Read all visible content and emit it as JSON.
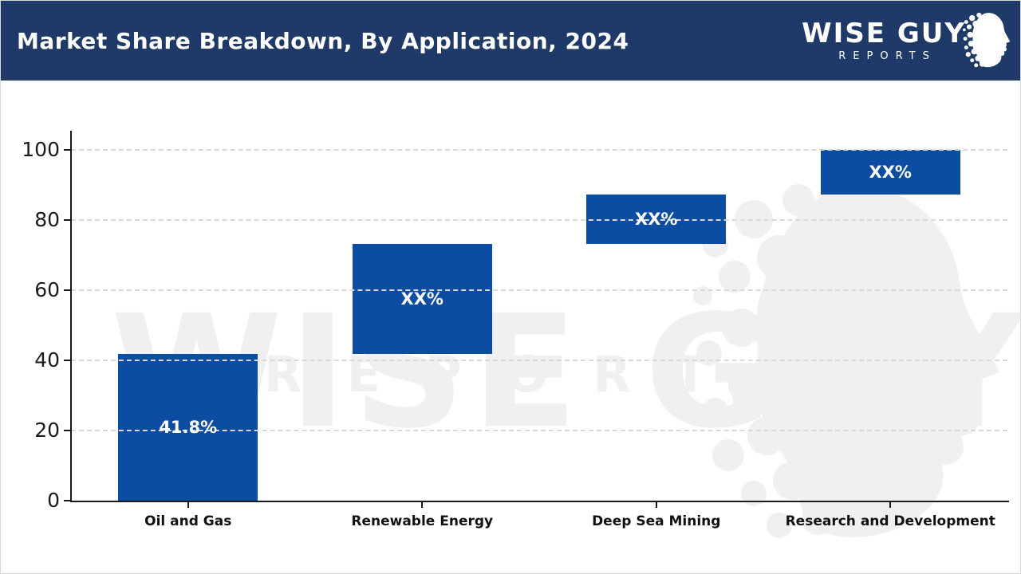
{
  "header": {
    "title": "Market Share Breakdown, By Application, 2024",
    "logo": {
      "line1": "WISE GUY",
      "line2": "REPORTS"
    }
  },
  "watermark": {
    "line1": "WISE GUY",
    "line2": "REPORTS"
  },
  "colors": {
    "header_bg": "#1f3a68",
    "bar": "#0c4da2",
    "grid": "#d9d9d9",
    "axis": "#1a1a1a",
    "bar_label_text": "#ffffff",
    "watermark": "#f0f0f3"
  },
  "chart_data": {
    "type": "bar",
    "subtype": "waterfall",
    "title": "Market Share Breakdown, By Application, 2024",
    "xlabel": "",
    "ylabel": "",
    "categories": [
      "Oil and Gas",
      "Renewable Energy",
      "Deep Sea Mining",
      "Research and Development"
    ],
    "segments": [
      {
        "category": "Oil and Gas",
        "start": 0,
        "end": 41.8,
        "label": "41.8%"
      },
      {
        "category": "Renewable Energy",
        "start": 41.8,
        "end": 73.2,
        "label": "XX%"
      },
      {
        "category": "Deep Sea Mining",
        "start": 73.2,
        "end": 87.2,
        "label": "XX%"
      },
      {
        "category": "Research and Development",
        "start": 87.2,
        "end": 100,
        "label": "XX%"
      }
    ],
    "yticks": [
      0,
      20,
      40,
      60,
      80,
      100
    ],
    "ylim": [
      0,
      105
    ],
    "grid": "dashed-horizontal-over-bars",
    "legend": "none"
  }
}
